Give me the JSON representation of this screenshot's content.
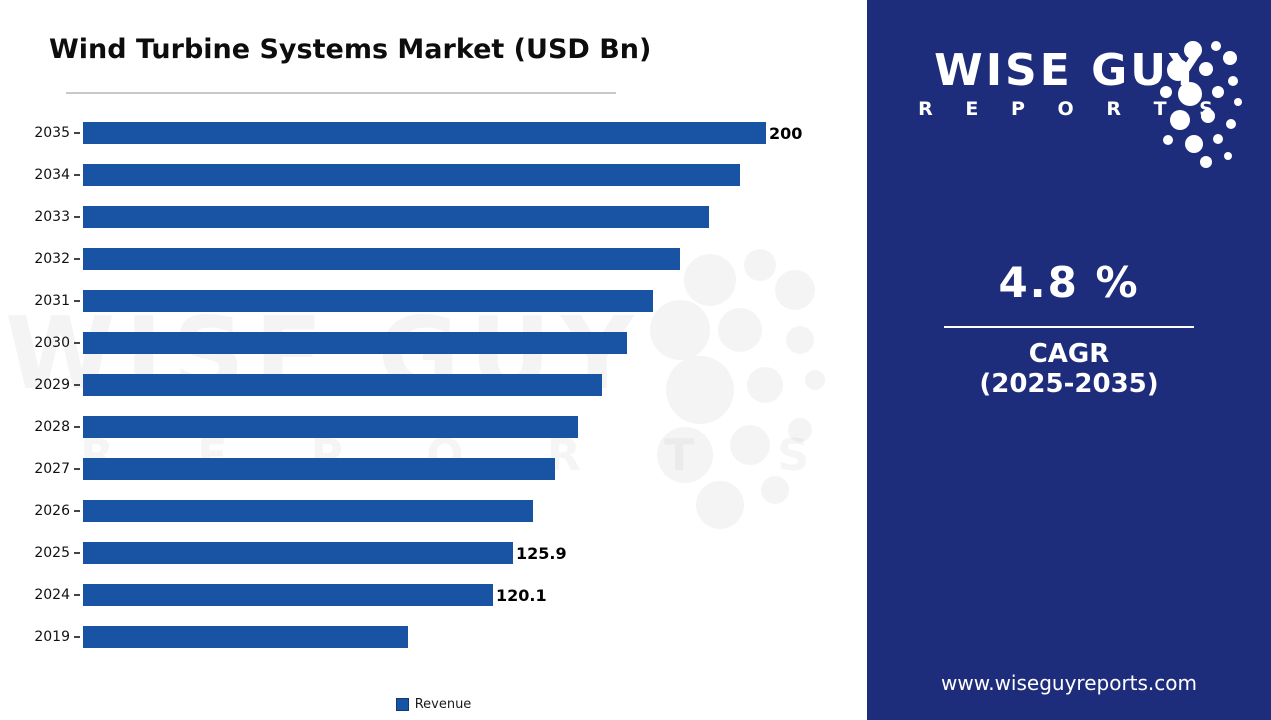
{
  "title": "Wind Turbine Systems Market (USD Bn)",
  "colors": {
    "bar": "#1853a4",
    "panel": "#1e2d7b"
  },
  "chart_data": {
    "type": "bar",
    "orientation": "horizontal",
    "title": "Wind Turbine Systems Market (USD Bn)",
    "xlabel": "",
    "ylabel": "",
    "xlim": [
      0,
      210
    ],
    "legend_position": "bottom",
    "grid": false,
    "series_name": "Revenue",
    "categories": [
      "2035",
      "2034",
      "2033",
      "2032",
      "2031",
      "2030",
      "2029",
      "2028",
      "2027",
      "2026",
      "2025",
      "2024",
      "2019"
    ],
    "values": [
      200,
      192.3,
      183.2,
      174.8,
      166.8,
      159.2,
      151.9,
      144.9,
      138.3,
      131.9,
      125.9,
      120.1,
      95.2
    ],
    "labeled_values": {
      "2035": "200",
      "2025": "125.9",
      "2024": "120.1"
    }
  },
  "legend": {
    "label": "Revenue"
  },
  "watermark": {
    "line1": "WISE GUY",
    "line2": "R E P O R T S"
  },
  "side_panel": {
    "logo_line1": "WISE GUY",
    "logo_line2": "R E P O R T S",
    "cagr_value": "4.8 %",
    "cagr_line1": "CAGR",
    "cagr_line2": "(2025-2035)",
    "website": "www.wiseguyreports.com"
  }
}
